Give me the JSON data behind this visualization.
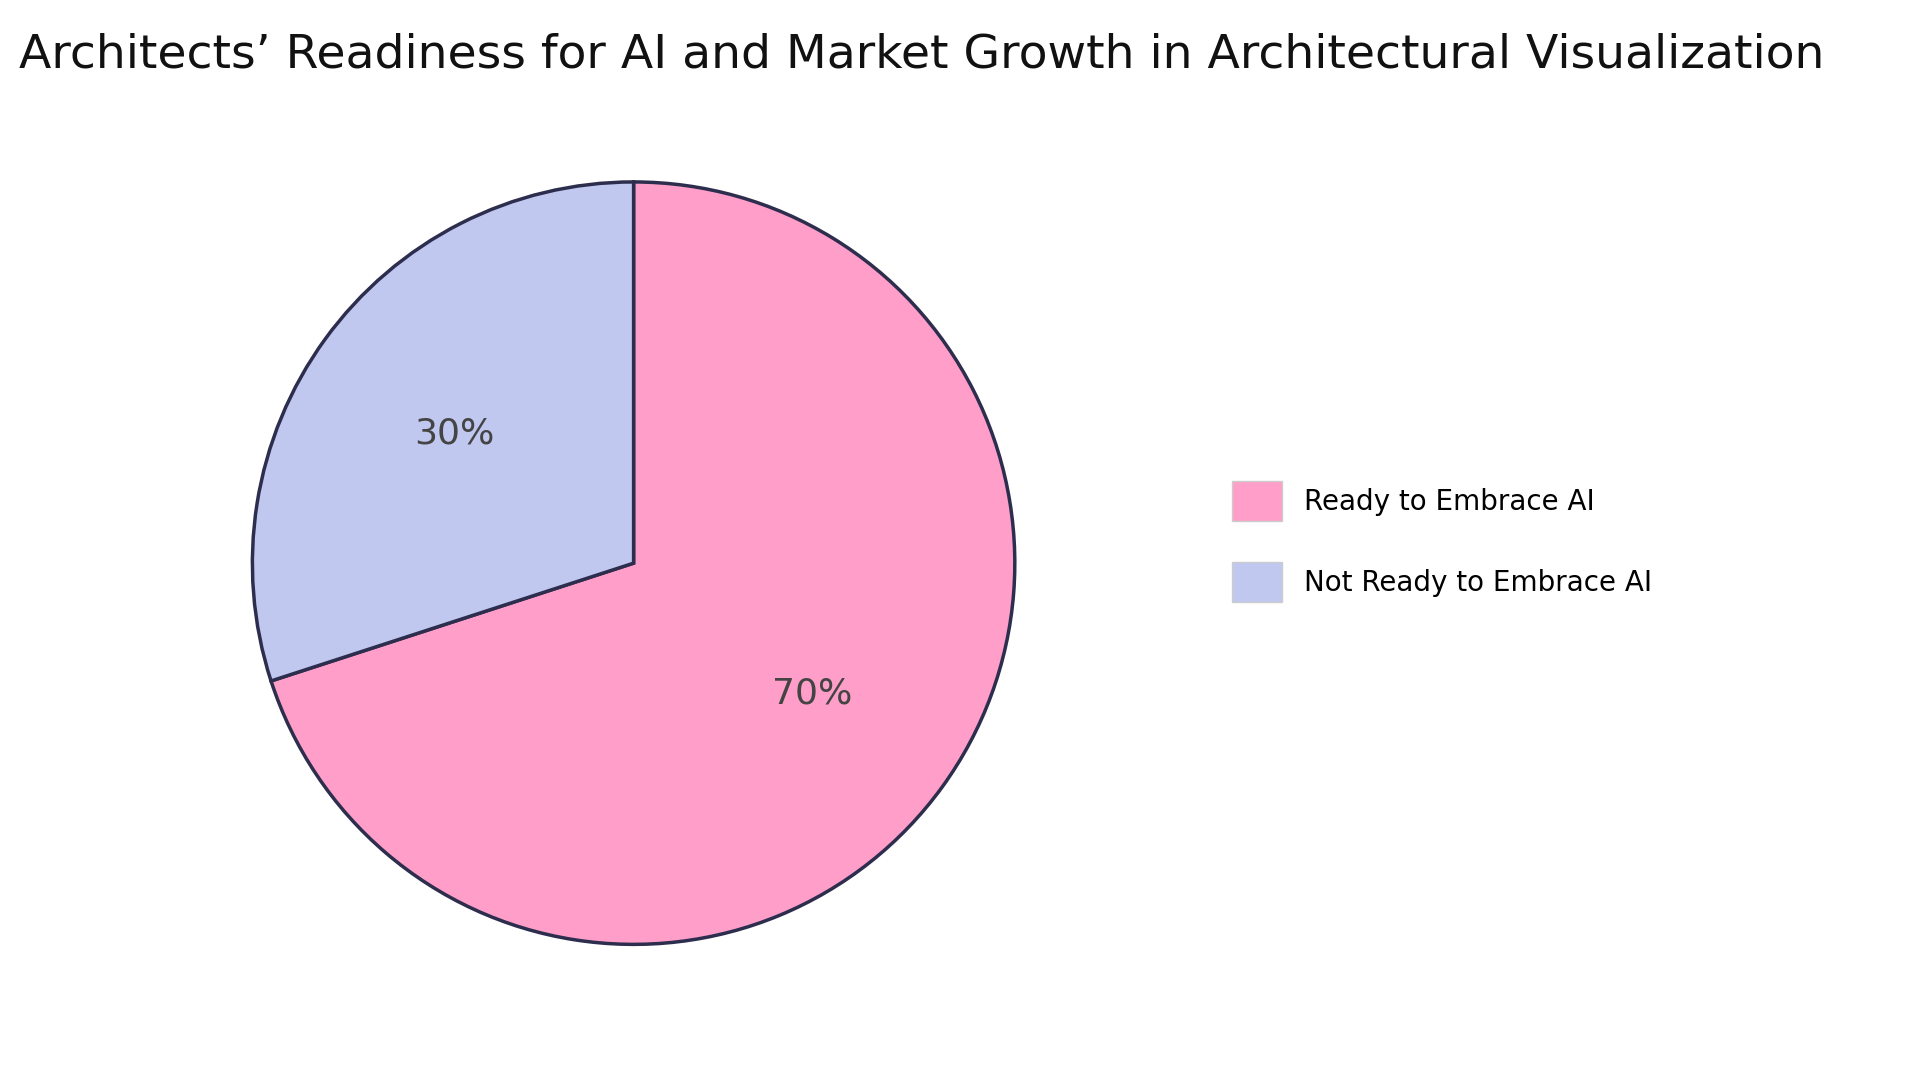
{
  "title": "Architects’ Readiness for AI and Market Growth in Architectural Visualization",
  "slices": [
    70,
    30
  ],
  "labels": [
    "Ready to Embrace AI",
    "Not Ready to Embrace AI"
  ],
  "slice_colors": [
    "#FF9EC8",
    "#C0C8F0"
  ],
  "edge_color": "#2D2D4E",
  "edge_linewidth": 2.5,
  "pct_labels": [
    "70%",
    "30%"
  ],
  "autopct_fontsize": 26,
  "legend_fontsize": 20,
  "title_fontsize": 34,
  "background_color": "#FFFFFF",
  "startangle": 90,
  "counterclock": false
}
